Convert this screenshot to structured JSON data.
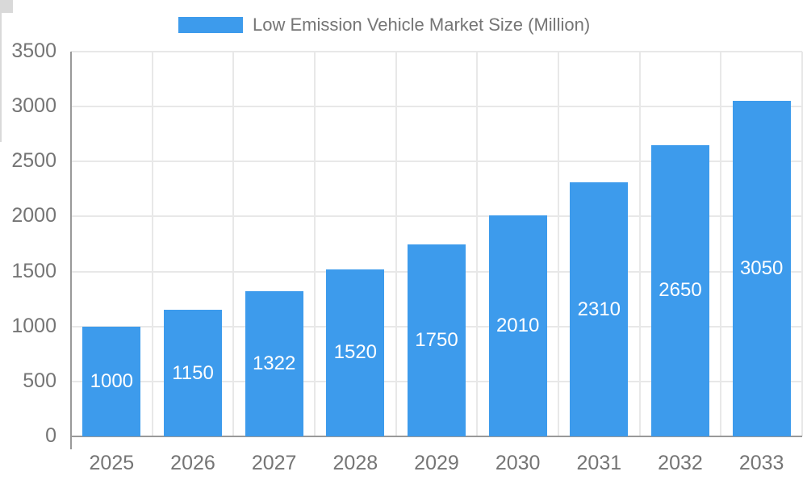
{
  "legend": {
    "label": "Low Emission Vehicle Market Size (Million)"
  },
  "chart_data": {
    "type": "bar",
    "title": "Low Emission Vehicle Market Size (Million)",
    "categories": [
      "2025",
      "2026",
      "2027",
      "2028",
      "2029",
      "2030",
      "2031",
      "2032",
      "2033"
    ],
    "values": [
      1000,
      1150,
      1322,
      1520,
      1750,
      2010,
      2310,
      2650,
      3050
    ],
    "value_labels": [
      "1000",
      "1150",
      "1322",
      "1520",
      "1750",
      "2010",
      "2310",
      "2650",
      "3050"
    ],
    "xlabel": "",
    "ylabel": "",
    "ylim": [
      0,
      3500
    ],
    "ytick_step": 500,
    "ytick_labels": [
      "0",
      "500",
      "1000",
      "1500",
      "2000",
      "2500",
      "3000",
      "3500"
    ],
    "grid": "on",
    "legend_position": "top",
    "value_label_position": "inside-center"
  },
  "colors": {
    "bar": "#3d9bec",
    "value_label": "#ffffff",
    "axis_text": "#757575",
    "legend_text": "#757575",
    "axis_line": "#999999",
    "gridline": "#e8e8e8",
    "tick": "#d9d9d9",
    "background": "#ffffff"
  }
}
